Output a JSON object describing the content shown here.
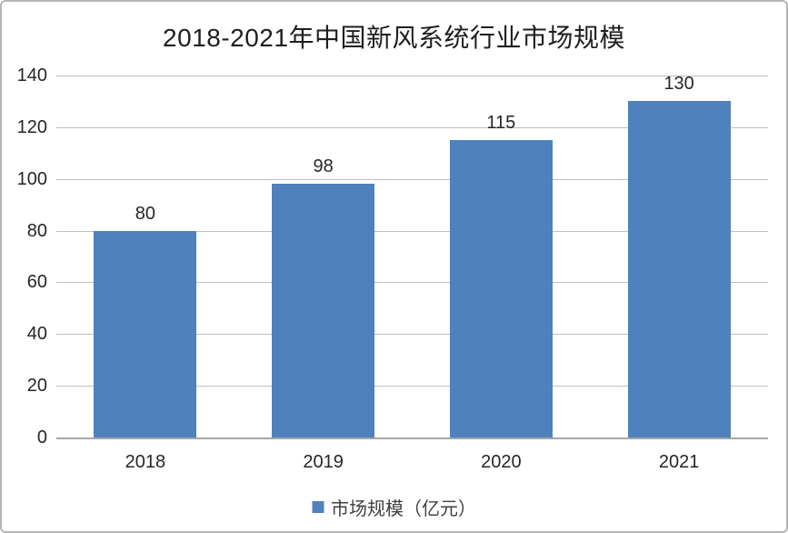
{
  "chart_data": {
    "type": "bar",
    "title": "2018-2021年中国新风系统行业市场规模",
    "categories": [
      "2018",
      "2019",
      "2020",
      "2021"
    ],
    "values": [
      80,
      98,
      115,
      130
    ],
    "data_labels": [
      "80",
      "98",
      "115",
      "130"
    ],
    "xlabel": "",
    "ylabel": "",
    "ylim": [
      0,
      140
    ],
    "yticks": [
      0,
      20,
      40,
      60,
      80,
      100,
      120,
      140
    ],
    "grid": true,
    "legend": {
      "position": "bottom",
      "label": "市场规模（亿元）"
    }
  },
  "colors": {
    "bar": "#4F81BD",
    "gridline": "#BFBFBF",
    "axis_line": "#A6A6A6",
    "title_text": "#1F1F1F",
    "tick_text": "#262626",
    "legend_text": "#404040",
    "frame_border": "#B5B5B5",
    "background": "#FFFFFF"
  }
}
